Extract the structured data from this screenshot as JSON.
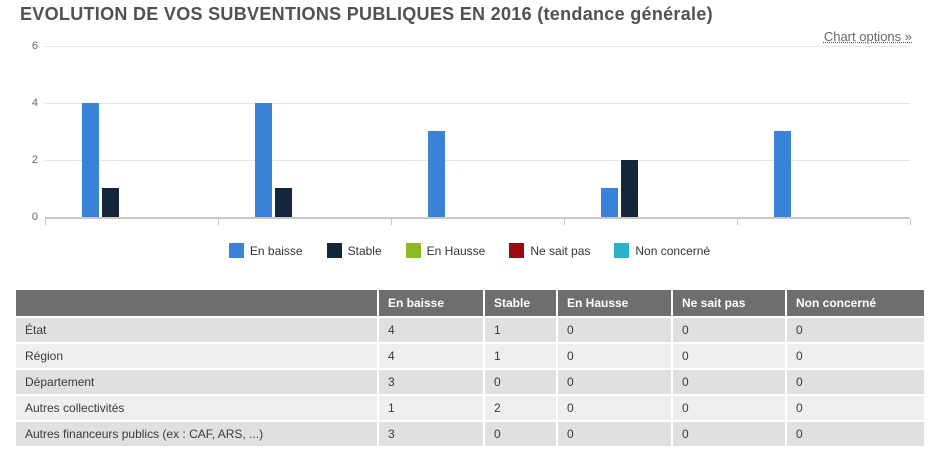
{
  "page": {
    "title": "EVOLUTION DE VOS SUBVENTIONS PUBLIQUES EN 2016 (tendance générale)",
    "chart_options_label": "Chart options »"
  },
  "chart_data": {
    "type": "bar",
    "title": "EVOLUTION DE VOS SUBVENTIONS PUBLIQUES EN 2016 (tendance générale)",
    "categories": [
      "État",
      "Région",
      "Département",
      "Autres collectivités",
      "Autres financeurs publics (ex : CAF, ARS, ...)"
    ],
    "series": [
      {
        "name": "En baisse",
        "color": "#3a82d8",
        "values": [
          4,
          4,
          3,
          1,
          3
        ]
      },
      {
        "name": "Stable",
        "color": "#14263c",
        "values": [
          1,
          1,
          0,
          2,
          0
        ]
      },
      {
        "name": "En Hausse",
        "color": "#8abb25",
        "values": [
          0,
          0,
          0,
          0,
          0
        ]
      },
      {
        "name": "Ne sait pas",
        "color": "#9a0b0f",
        "values": [
          0,
          0,
          0,
          0,
          0
        ]
      },
      {
        "name": "Non concerné",
        "color": "#29b2c9",
        "values": [
          0,
          0,
          0,
          0,
          0
        ]
      }
    ],
    "xlabel": "",
    "ylabel": "",
    "ylim": [
      0,
      6
    ],
    "yticks": [
      0,
      2,
      4,
      6
    ],
    "grid": true,
    "x_tick_labels_visible": false,
    "legend_position": "bottom"
  },
  "table": {
    "corner_header": "",
    "columns": [
      "En baisse",
      "Stable",
      "En Hausse",
      "Ne sait pas",
      "Non concerné"
    ],
    "rows": [
      {
        "label": "État",
        "values": [
          "4",
          "1",
          "0",
          "0",
          "0"
        ]
      },
      {
        "label": "Région",
        "values": [
          "4",
          "1",
          "0",
          "0",
          "0"
        ]
      },
      {
        "label": "Département",
        "values": [
          "3",
          "0",
          "0",
          "0",
          "0"
        ]
      },
      {
        "label": "Autres collectivités",
        "values": [
          "1",
          "2",
          "0",
          "0",
          "0"
        ]
      },
      {
        "label": "Autres financeurs publics (ex : CAF, ARS, ...)",
        "values": [
          "3",
          "0",
          "0",
          "0",
          "0"
        ]
      }
    ]
  },
  "colors": {
    "title_text": "#515151",
    "link_text": "#666666",
    "axis_label_text": "#666666",
    "gridline": "#e6e6e6",
    "axis_line": "#c9c9c9",
    "axis_tick": "#b9cbdd",
    "table_header_bg": "#6e6e6e",
    "table_header_text": "#ffffff",
    "table_row_odd_bg": "#e0e0e0",
    "table_row_even_bg": "#efefef",
    "table_text": "#3a3a3a"
  }
}
